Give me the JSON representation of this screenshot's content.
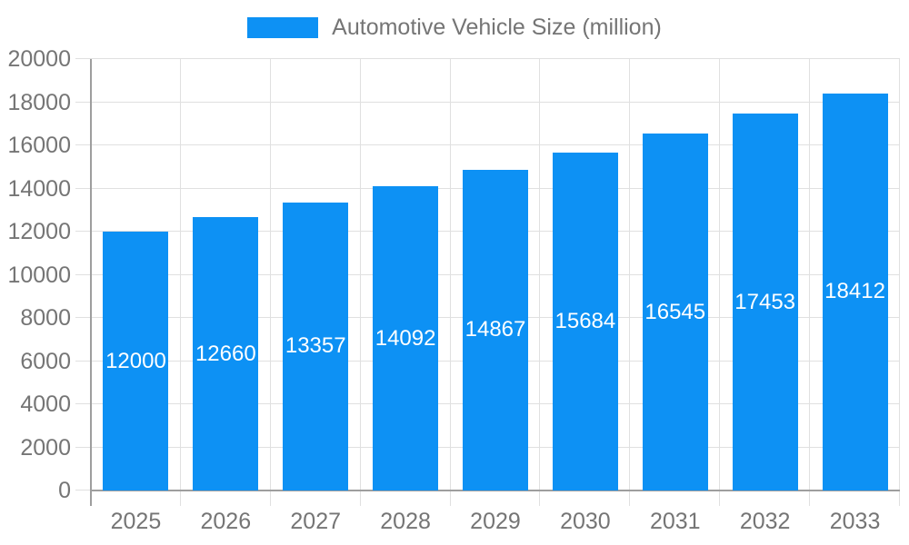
{
  "legend": {
    "label": "Automotive Vehicle Size (million)",
    "position": "top-center"
  },
  "chart_data": {
    "type": "bar",
    "title": "Automotive Vehicle Size (million)",
    "series_name": "Automotive Vehicle Size (million)",
    "categories": [
      "2025",
      "2026",
      "2027",
      "2028",
      "2029",
      "2030",
      "2031",
      "2032",
      "2033"
    ],
    "values": [
      12000,
      12660,
      13357,
      14092,
      14867,
      15684,
      16545,
      17453,
      18412
    ],
    "xlabel": "",
    "ylabel": "",
    "ylim": [
      0,
      20000
    ],
    "y_tick_step": 2000,
    "y_tick_labels": [
      "0",
      "2000",
      "4000",
      "6000",
      "8000",
      "10000",
      "12000",
      "14000",
      "16000",
      "18000",
      "20000"
    ],
    "grid": true,
    "value_label_position": "inside-center",
    "colors": {
      "bar": "#0D91F4",
      "value_label": "#FFFFFF",
      "axis_label": "#757575",
      "axis_line": "#9E9E9E",
      "gridline": "#E0E0E0",
      "background": "#FFFFFF"
    }
  }
}
